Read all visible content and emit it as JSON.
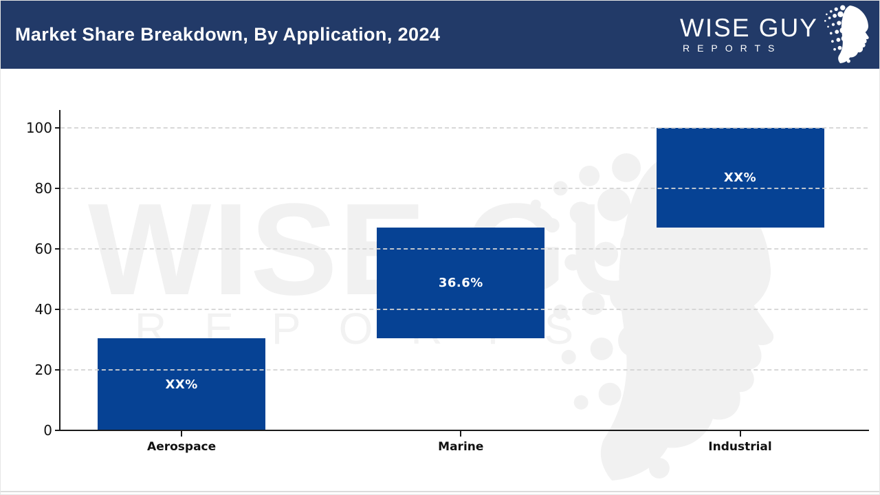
{
  "header": {
    "title": "Market Share Breakdown, By Application, 2024",
    "logo": {
      "line1": "WISE GUY",
      "line2": "REPORTS"
    }
  },
  "watermark": {
    "line1": "WISE GUY",
    "line2": "REPORTS"
  },
  "icons": {
    "brand_head": "dot-matrix-face-profile"
  },
  "chart_data": {
    "type": "bar",
    "variant": "floating-stacked-percentage",
    "title": "Market Share Breakdown, By Application, 2024",
    "categories": [
      "Aerospace",
      "Marine",
      "Industrial"
    ],
    "segments": [
      {
        "category": "Aerospace",
        "start": 0,
        "end": 30.4,
        "label": "XX%"
      },
      {
        "category": "Marine",
        "start": 30.4,
        "end": 67.0,
        "label": "36.6%"
      },
      {
        "category": "Industrial",
        "start": 67.0,
        "end": 100,
        "label": "XX%"
      }
    ],
    "xlabel": "",
    "ylabel": "",
    "ylim": [
      0,
      100
    ],
    "yticks": [
      0,
      20,
      40,
      60,
      80,
      100
    ],
    "grid": {
      "axis": "y",
      "style": "dashed",
      "color": "#d4d4d4",
      "drawn_over_bars": true
    },
    "legend": "none",
    "colors": {
      "bar": "#064294",
      "bar_label": "#ffffff",
      "axis": "#1a1a1a",
      "header_bg": "#223a68",
      "watermark": "#f1f1f1"
    }
  }
}
